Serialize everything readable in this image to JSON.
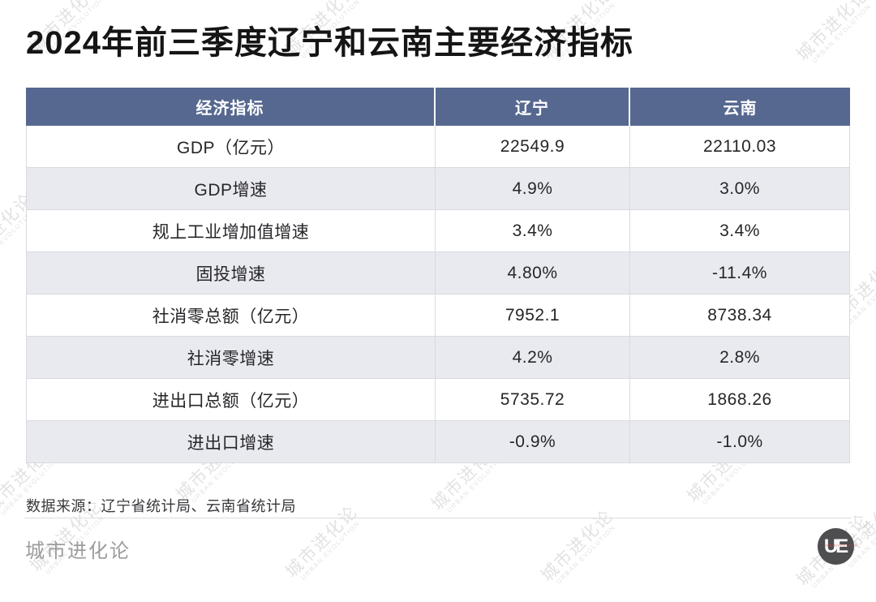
{
  "title": "2024年前三季度辽宁和云南主要经济指标",
  "chart_data": {
    "type": "table",
    "title": "2024年前三季度辽宁和云南主要经济指标",
    "columns": [
      "经济指标",
      "辽宁",
      "云南"
    ],
    "rows": [
      [
        "GDP（亿元）",
        "22549.9",
        "22110.03"
      ],
      [
        "GDP增速",
        "4.9%",
        "3.0%"
      ],
      [
        "规上工业增加值增速",
        "3.4%",
        "3.4%"
      ],
      [
        "固投增速",
        "4.80%",
        "-11.4%"
      ],
      [
        "社消零总额（亿元）",
        "7952.1",
        "8738.34"
      ],
      [
        "社消零增速",
        "4.2%",
        "2.8%"
      ],
      [
        "进出口总额（亿元）",
        "5735.72",
        "1868.26"
      ],
      [
        "进出口增速",
        "-0.9%",
        "-1.0%"
      ]
    ],
    "source": "数据来源：辽宁省统计局、云南省统计局",
    "legend_position": "none",
    "grid": true
  },
  "footer": {
    "source": "数据来源：辽宁省统计局、云南省统计局",
    "brand": "城市进化论",
    "logo_text": "UE",
    "logo_subtext": "URBAN EVOLUTION"
  },
  "watermark": {
    "line1": "城市进化论",
    "line2": "URBAN EVOLUTION"
  },
  "colors": {
    "header_bg": "#566890",
    "header_text": "#ffffff",
    "row_alt_bg": "#e9eaef",
    "body_text": "#26262a",
    "brand_text": "#9c9c9c",
    "logo_bg": "#4e4e50"
  }
}
